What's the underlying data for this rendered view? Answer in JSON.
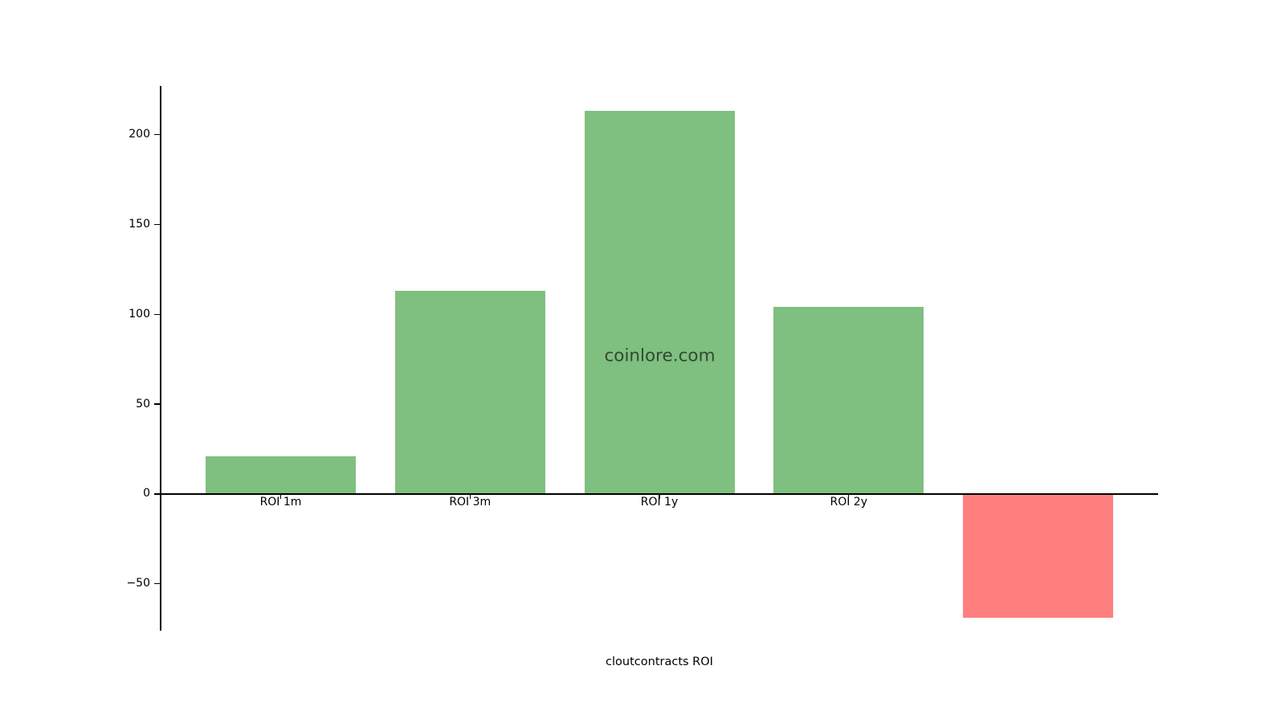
{
  "page": {
    "background": "#ffffff",
    "axis_color": "#000000"
  },
  "watermark": {
    "text": "coinlore.com",
    "color": "#000000",
    "opacity": 0.62
  },
  "chart_data": {
    "type": "bar",
    "title": "cloutcontracts ROI",
    "title_position": "bottom-center",
    "xlabel": "",
    "ylabel": "",
    "categories": [
      "ROI 1m",
      "ROI 3m",
      "ROI 1y",
      "ROI 2y",
      ""
    ],
    "values": [
      21,
      113,
      213,
      104,
      -69
    ],
    "positive_color": "#7FBF7F",
    "negative_color": "#FF7F7F",
    "yticks": [
      200,
      150,
      100,
      50,
      0,
      -50
    ],
    "ytick_labels": [
      "200",
      "150",
      "100",
      "50",
      "0",
      "−50"
    ],
    "ylim": [
      -76,
      227
    ],
    "grid": false,
    "legend": null,
    "x_axis_at_zero": true,
    "notes": "Fifth bar is negative (red); its x tick label is hidden behind the bar."
  }
}
